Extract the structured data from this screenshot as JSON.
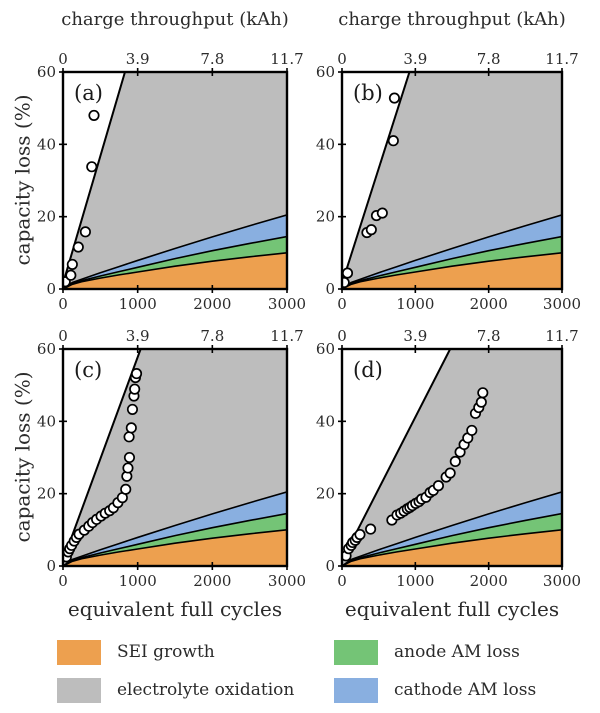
{
  "figure": {
    "top_axis_title": "charge throughput (kAh)",
    "x_axis_title": "equivalent full cycles",
    "y_axis_title": "capacity loss (%)"
  },
  "legend": {
    "items": [
      {
        "label": "SEI growth",
        "color": "#EDA04F"
      },
      {
        "label": "electrolyte oxidation",
        "color": "#BDBDBD"
      },
      {
        "label": "anode AM loss",
        "color": "#74C476"
      },
      {
        "label": "cathode AM loss",
        "color": "#89AFE0"
      }
    ]
  },
  "chart_data": {
    "type": "area",
    "xlabel": "equivalent full cycles",
    "ylabel": "capacity loss (%)",
    "top_xlabel": "charge throughput (kAh)",
    "xlim": [
      0,
      3000
    ],
    "ylim": [
      0,
      60
    ],
    "x_ticks": [
      0,
      1000,
      2000,
      3000
    ],
    "y_ticks": [
      0,
      20,
      40,
      60
    ],
    "top_ticks": [
      {
        "x": 0,
        "label": "0"
      },
      {
        "x": 1000,
        "label": "3.9"
      },
      {
        "x": 2000,
        "label": "7.8"
      },
      {
        "x": 3000,
        "label": "11.7"
      }
    ],
    "colors": {
      "sei": "#EDA04F",
      "electrolyte": "#BDBDBD",
      "anode": "#74C476",
      "cathode": "#89AFE0",
      "marker_fill": "#FFFFFF",
      "line": "#000000",
      "text": "#2b2b2b"
    },
    "stacked_boundaries": {
      "note": "cumulative capacity-loss boundaries (%) vs equivalent full cycles, shared by all panels",
      "x": [
        0,
        125,
        250,
        500,
        750,
        1000,
        1500,
        2000,
        2500,
        3000
      ],
      "sei_top": [
        0,
        1.3,
        2.0,
        3.0,
        3.9,
        4.7,
        6.3,
        7.7,
        8.9,
        10.0
      ],
      "anode_top": [
        0,
        1.5,
        2.3,
        3.6,
        4.8,
        6.0,
        8.4,
        10.6,
        12.6,
        14.5
      ],
      "cathode_top": [
        0,
        1.8,
        2.7,
        4.5,
        6.2,
        7.9,
        11.2,
        14.4,
        17.5,
        20.5
      ]
    },
    "panels": [
      {
        "label": "(a)",
        "oxidation_line": {
          "y_at_0": 1.5,
          "x_at_60": 830
        },
        "scatter": [
          [
            30,
            2.0
          ],
          [
            105,
            3.8
          ],
          [
            125,
            6.8
          ],
          [
            205,
            11.6
          ],
          [
            300,
            15.8
          ],
          [
            385,
            33.8
          ],
          [
            415,
            48.0
          ]
        ]
      },
      {
        "label": "(b)",
        "oxidation_line": {
          "y_at_0": 1.5,
          "x_at_60": 920
        },
        "scatter": [
          [
            30,
            1.8
          ],
          [
            75,
            4.4
          ],
          [
            340,
            15.6
          ],
          [
            400,
            16.4
          ],
          [
            470,
            20.3
          ],
          [
            550,
            21.0
          ],
          [
            700,
            41.0
          ],
          [
            715,
            52.8
          ]
        ]
      },
      {
        "label": "(c)",
        "oxidation_line": {
          "y_at_0": 1.5,
          "x_at_60": 1040
        },
        "scatter": [
          [
            45,
            2.5
          ],
          [
            70,
            3.9
          ],
          [
            90,
            4.8
          ],
          [
            115,
            5.7
          ],
          [
            150,
            6.9
          ],
          [
            180,
            7.9
          ],
          [
            215,
            8.8
          ],
          [
            285,
            9.9
          ],
          [
            345,
            11.0
          ],
          [
            395,
            12.0
          ],
          [
            450,
            12.9
          ],
          [
            510,
            13.8
          ],
          [
            565,
            14.6
          ],
          [
            625,
            15.3
          ],
          [
            675,
            16.1
          ],
          [
            735,
            17.5
          ],
          [
            795,
            18.9
          ],
          [
            840,
            21.2
          ],
          [
            855,
            24.8
          ],
          [
            870,
            27.1
          ],
          [
            890,
            30.0
          ],
          [
            885,
            35.7
          ],
          [
            915,
            38.2
          ],
          [
            930,
            43.3
          ],
          [
            950,
            47.0
          ],
          [
            960,
            48.9
          ],
          [
            970,
            52.1
          ],
          [
            985,
            53.2
          ]
        ]
      },
      {
        "label": "(d)",
        "oxidation_line": {
          "y_at_0": 1.5,
          "x_at_60": 1475
        },
        "scatter": [
          [
            55,
            2.8
          ],
          [
            90,
            4.8
          ],
          [
            125,
            5.7
          ],
          [
            145,
            6.5
          ],
          [
            180,
            7.1
          ],
          [
            205,
            7.9
          ],
          [
            245,
            8.7
          ],
          [
            390,
            10.2
          ],
          [
            680,
            12.7
          ],
          [
            750,
            14.1
          ],
          [
            800,
            14.6
          ],
          [
            845,
            15.2
          ],
          [
            890,
            15.8
          ],
          [
            925,
            16.2
          ],
          [
            960,
            16.7
          ],
          [
            1005,
            17.3
          ],
          [
            1050,
            17.8
          ],
          [
            1085,
            18.5
          ],
          [
            1145,
            19.0
          ],
          [
            1200,
            20.3
          ],
          [
            1245,
            20.9
          ],
          [
            1315,
            22.2
          ],
          [
            1420,
            24.6
          ],
          [
            1475,
            25.7
          ],
          [
            1545,
            28.9
          ],
          [
            1610,
            31.5
          ],
          [
            1665,
            33.6
          ],
          [
            1715,
            35.4
          ],
          [
            1770,
            37.5
          ],
          [
            1820,
            42.2
          ],
          [
            1865,
            43.8
          ],
          [
            1900,
            45.3
          ],
          [
            1920,
            47.9
          ]
        ]
      }
    ]
  }
}
